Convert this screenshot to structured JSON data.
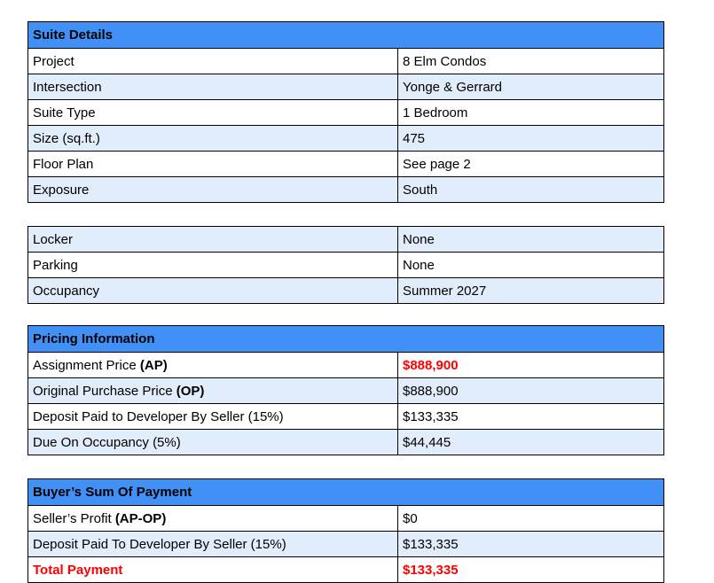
{
  "colors": {
    "header_bg": "#4090f5",
    "alt_row_bg": "#e2edfc",
    "row_bg": "#ffffff",
    "border": "#000000",
    "text": "#000000",
    "highlight_red": "#ff0000"
  },
  "suite_details": {
    "title": "Suite Details",
    "rows": [
      {
        "label": "Project",
        "label_bold": "",
        "value": "8 Elm Condos"
      },
      {
        "label": "Intersection",
        "label_bold": "",
        "value": "Yonge & Gerrard"
      },
      {
        "label": "Suite Type",
        "label_bold": "",
        "value": "1 Bedroom"
      },
      {
        "label": "Size (sq.ft.)",
        "label_bold": "",
        "value": "475"
      },
      {
        "label": "Floor Plan",
        "label_bold": "",
        "value": "See page 2"
      },
      {
        "label": "Exposure",
        "label_bold": "",
        "value": "South"
      }
    ]
  },
  "unit_extras": {
    "rows": [
      {
        "label": "Locker",
        "label_bold": "",
        "value": "None"
      },
      {
        "label": "Parking",
        "label_bold": "",
        "value": "None"
      },
      {
        "label": "Occupancy",
        "label_bold": "",
        "value": "Summer 2027"
      }
    ]
  },
  "pricing_information": {
    "title": "Pricing Information",
    "rows": [
      {
        "label": "Assignment Price ",
        "label_bold": "(AP)",
        "value": "$888,900"
      },
      {
        "label": "Original Purchase Price ",
        "label_bold": "(OP)",
        "value": "$888,900"
      },
      {
        "label": "Deposit Paid to Developer By Seller (15%)",
        "label_bold": "",
        "value": "$133,335"
      },
      {
        "label": "Due On Occupancy (5%)",
        "label_bold": "",
        "value": "$44,445"
      }
    ]
  },
  "buyers_sum": {
    "title": "Buyer’s Sum Of Payment",
    "rows": [
      {
        "label": "Seller’s Profit ",
        "label_bold": "(AP-OP)",
        "value": "$0"
      },
      {
        "label": "Deposit Paid To Developer By Seller (15%)",
        "label_bold": "",
        "value": "$133,335"
      },
      {
        "label": "Total Payment",
        "label_bold": "",
        "value": "$133,335"
      }
    ]
  }
}
